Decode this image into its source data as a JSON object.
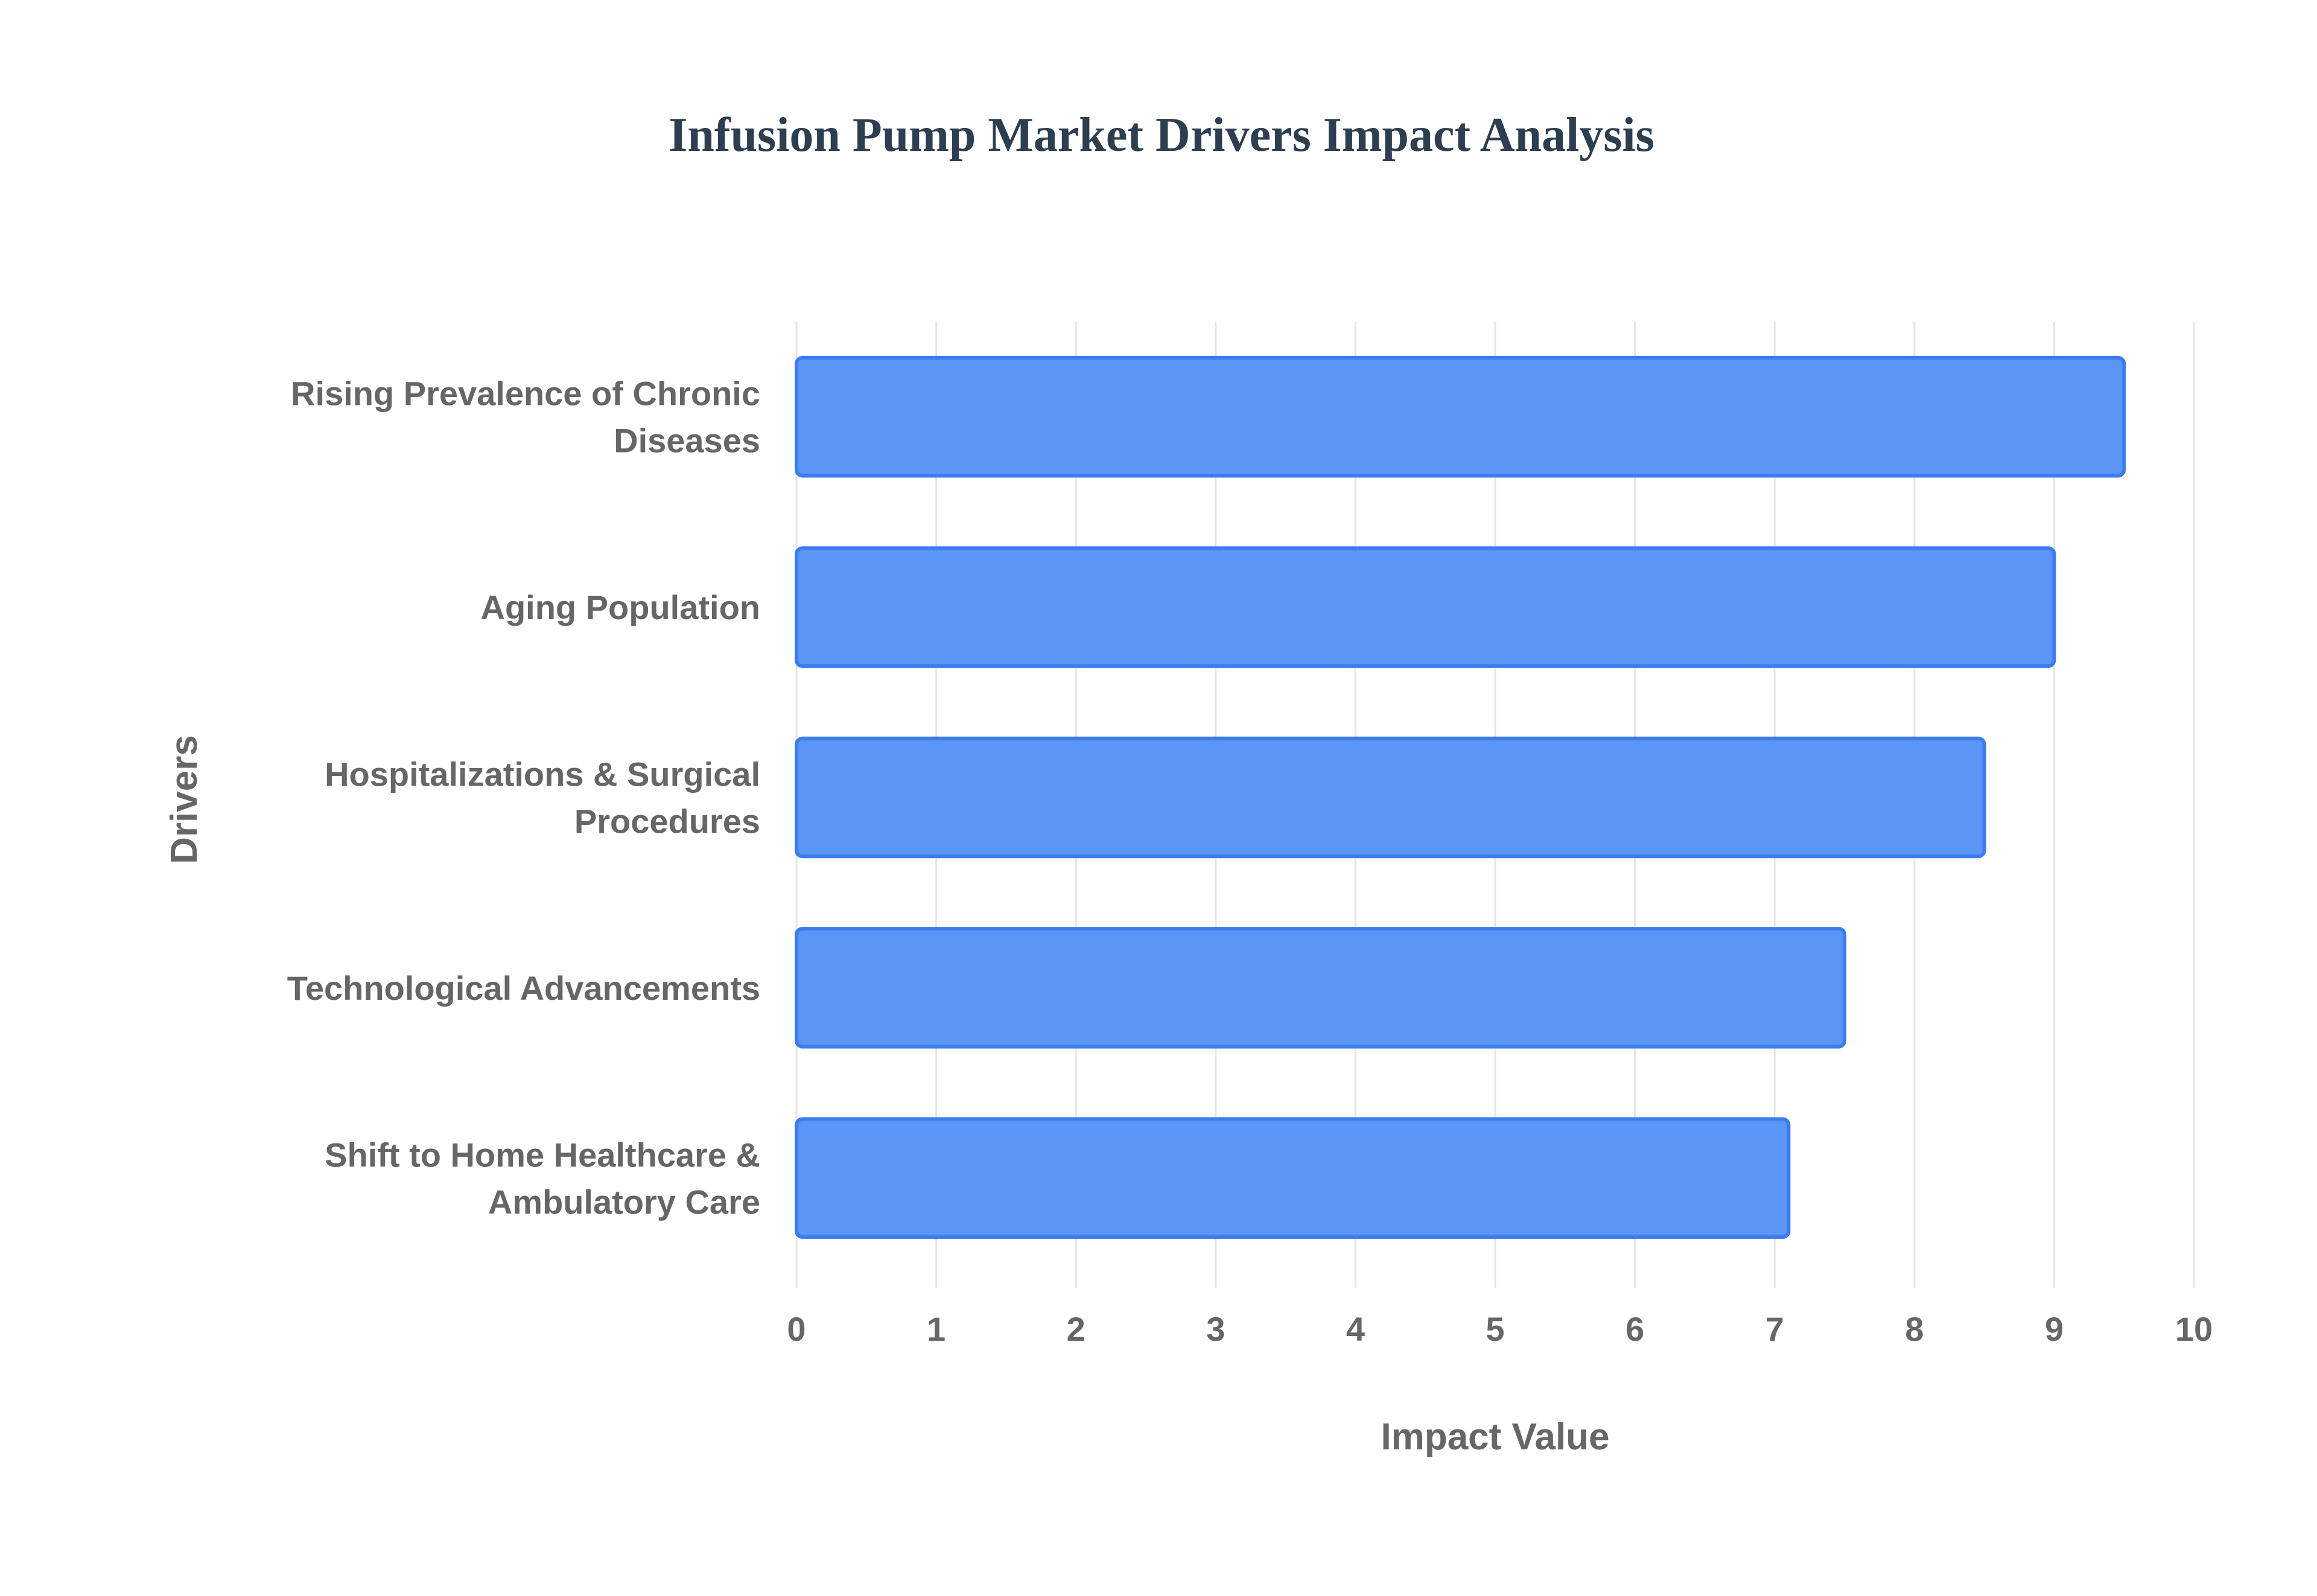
{
  "chart_data": {
    "type": "bar",
    "orientation": "horizontal",
    "title": "Infusion Pump Market Drivers Impact Analysis",
    "xlabel": "Impact Value",
    "ylabel": "Drivers",
    "xlim": [
      0,
      10
    ],
    "x_ticks": [
      "0",
      "1",
      "2",
      "3",
      "4",
      "5",
      "6",
      "7",
      "8",
      "9",
      "10"
    ],
    "grid": true,
    "legend": "none",
    "categories": [
      [
        "Rising Prevalence of Chronic",
        "Diseases"
      ],
      [
        "Aging Population"
      ],
      [
        "Hospitalizations & Surgical",
        "Procedures"
      ],
      [
        "Technological Advancements"
      ],
      [
        "Shift to Home Healthcare &",
        "Ambulatory Care"
      ]
    ],
    "values": [
      9.5,
      9.0,
      8.5,
      7.5,
      7.1
    ],
    "colors": {
      "bar_fill": "#5b95f5",
      "bar_border": "#3b7ded",
      "title": "#2c3e50",
      "text": "#666666",
      "grid": "#e6e6e6"
    }
  }
}
